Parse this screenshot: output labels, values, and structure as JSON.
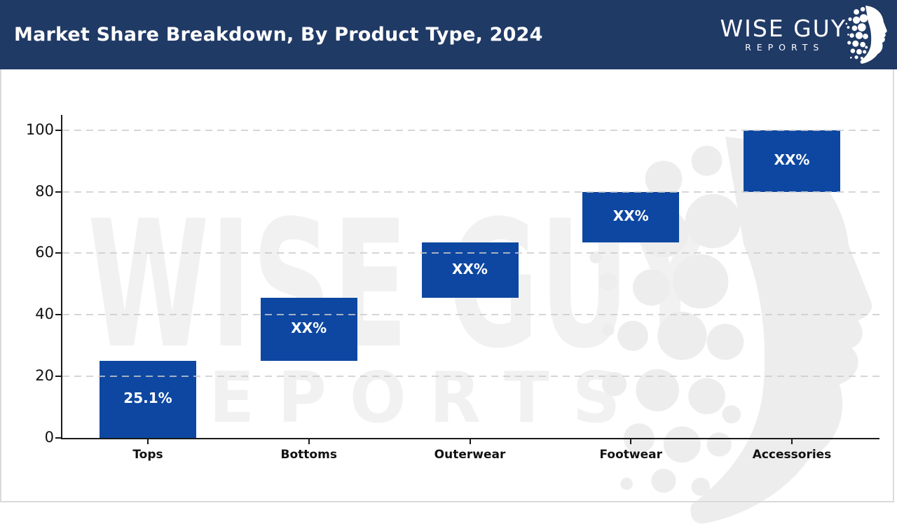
{
  "header": {
    "title": "Market Share Breakdown, By Product Type, 2024",
    "logo": {
      "line1": "WISE GUY",
      "line2": "REPORTS"
    }
  },
  "watermark": {
    "line1": "WISE GUY",
    "line2": "R E P O R T S"
  },
  "colors": {
    "header_bg": "#203a66",
    "bar": "#0d47a1",
    "bar_label": "#ffffff",
    "grid": "#cbcbcb",
    "axis": "#1a1a1a",
    "watermark": "#f1f1f1"
  },
  "chart_data": {
    "type": "bar",
    "subtype": "waterfall",
    "title": "Market Share Breakdown, By Product Type, 2024",
    "xlabel": "",
    "ylabel": "",
    "categories": [
      "Tops",
      "Bottoms",
      "Outerwear",
      "Footwear",
      "Accessories"
    ],
    "bars": [
      {
        "category": "Tops",
        "start": 0,
        "end": 25.1,
        "label": "25.1%"
      },
      {
        "category": "Bottoms",
        "start": 25.1,
        "end": 45.5,
        "label": "XX%"
      },
      {
        "category": "Outerwear",
        "start": 45.5,
        "end": 63.5,
        "label": "XX%"
      },
      {
        "category": "Footwear",
        "start": 63.5,
        "end": 80,
        "label": "XX%"
      },
      {
        "category": "Accessories",
        "start": 80,
        "end": 100,
        "label": "XX%"
      }
    ],
    "yticks": [
      0,
      20,
      40,
      60,
      80,
      100
    ],
    "ytick_labels": [
      "0",
      "20",
      "40",
      "60",
      "80",
      "100"
    ],
    "ylim": [
      0,
      105
    ],
    "grid": "horizontal-dashed",
    "legend": "none"
  }
}
